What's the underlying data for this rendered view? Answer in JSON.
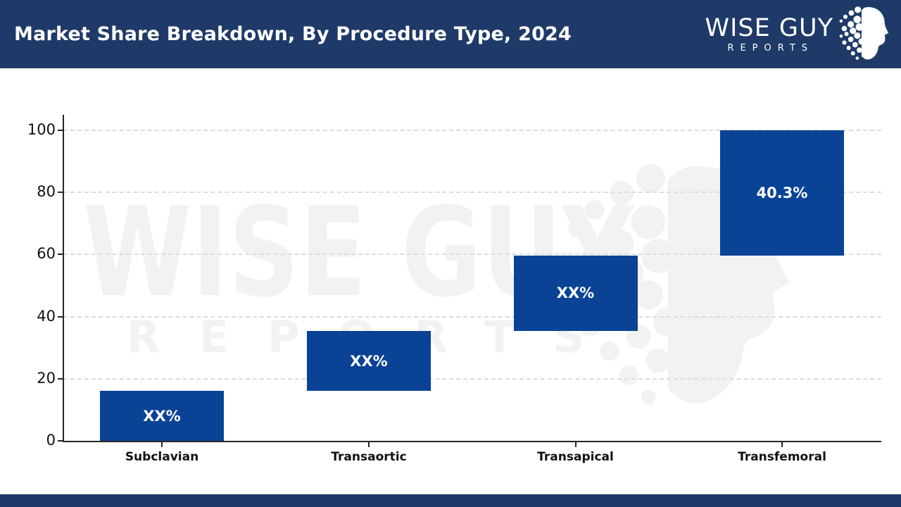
{
  "header": {
    "title": "Market Share Breakdown, By Procedure Type, 2024",
    "logo": {
      "brand": "WISE GUY",
      "sub": "REPORTS"
    }
  },
  "watermark": {
    "brand": "WISE GUY",
    "sub": "REPORTS"
  },
  "chart_data": {
    "type": "bar",
    "subtype": "waterfall-stacked-percent",
    "title": "Market Share Breakdown, By Procedure Type, 2024",
    "categories": [
      "Subclavian",
      "Transaortic",
      "Transapical",
      "Transfemoral"
    ],
    "segments": [
      {
        "category": "Subclavian",
        "start": 0,
        "end": 16,
        "value": 16.0,
        "label": "XX%"
      },
      {
        "category": "Transaortic",
        "start": 16,
        "end": 35.4,
        "value": 19.4,
        "label": "XX%"
      },
      {
        "category": "Transapical",
        "start": 35.4,
        "end": 59.7,
        "value": 24.3,
        "label": "XX%"
      },
      {
        "category": "Transfemoral",
        "start": 59.7,
        "end": 100,
        "value": 40.3,
        "label": "40.3%"
      }
    ],
    "bar_labels": [
      "XX%",
      "XX%",
      "XX%",
      "40.3%"
    ],
    "xlabel": "",
    "ylabel": "",
    "ylim": [
      0,
      100
    ],
    "yticks": [
      0,
      20,
      40,
      60,
      80,
      100
    ],
    "grid": "horizontal-dashed",
    "legend": "none",
    "colors": {
      "bar": "#0a4396",
      "bar_label_text": "#ffffff",
      "grid": "#dcdcdc",
      "axis": "#262626",
      "tick_text": "#111111",
      "brand_navy": "#1f3a68",
      "watermark": "#f2f2f2"
    }
  }
}
